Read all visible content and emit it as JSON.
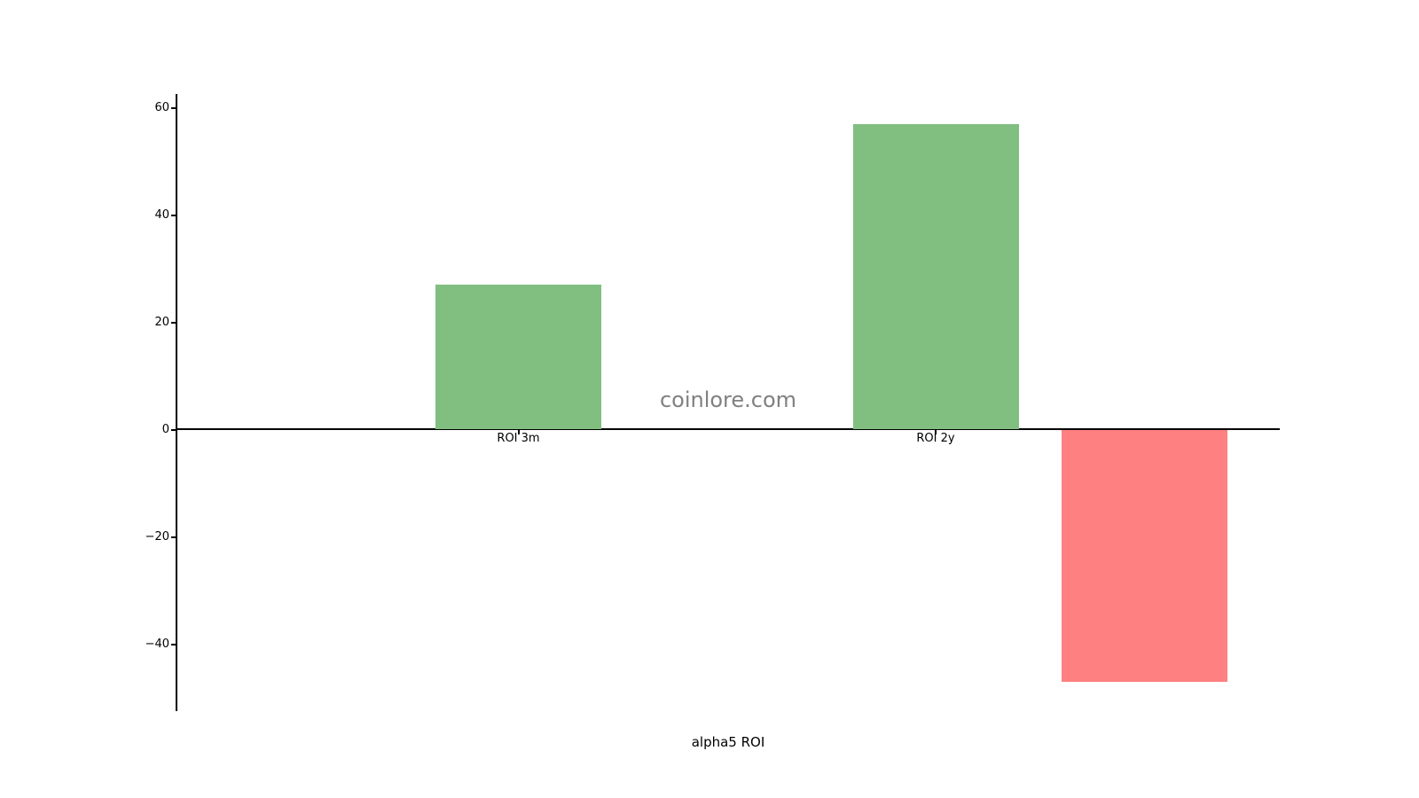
{
  "watermark": {
    "text": "coinlore.com",
    "color": "#808080"
  },
  "chart_data": {
    "type": "bar",
    "title": "alpha5 ROI",
    "xlabel": "alpha5 ROI",
    "ylabel": "",
    "categories": [
      "ROI 3m",
      "ROI 2y",
      ""
    ],
    "values": [
      27,
      57,
      -47
    ],
    "bars": [
      {
        "label": "ROI 3m",
        "value": 27,
        "color": "#80bf80"
      },
      {
        "label": "ROI 2y",
        "value": 57,
        "color": "#80bf80"
      },
      {
        "label": "",
        "value": -47,
        "color": "#ff8080"
      }
    ],
    "yticks": [
      60,
      40,
      20,
      0,
      -20,
      -40
    ],
    "ylim": [
      -52,
      63
    ],
    "grid": false,
    "legend": "none",
    "colors": {
      "positive": "#80bf80",
      "negative": "#ff8080",
      "axis": "#000000",
      "tick_label": "#000000"
    }
  }
}
